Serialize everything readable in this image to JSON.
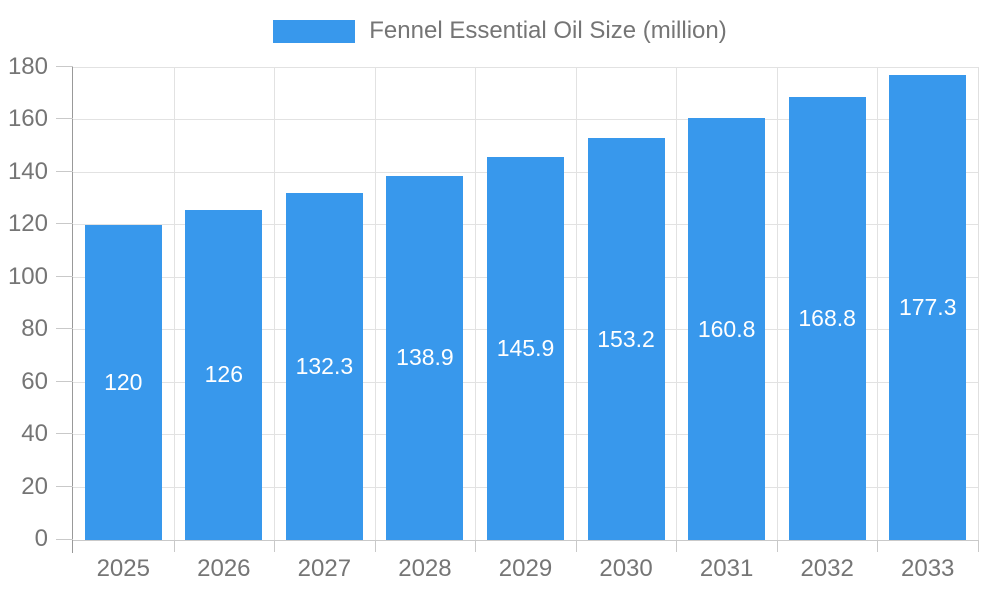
{
  "chart_data": {
    "type": "bar",
    "title": "Fennel Essential Oil Size (million)",
    "categories": [
      "2025",
      "2026",
      "2027",
      "2028",
      "2029",
      "2030",
      "2031",
      "2032",
      "2033"
    ],
    "values": [
      120,
      126,
      132.3,
      138.9,
      145.9,
      153.2,
      160.8,
      168.8,
      177.3
    ],
    "value_labels": [
      "120",
      "126",
      "132.3",
      "138.9",
      "145.9",
      "153.2",
      "160.8",
      "168.8",
      "177.3"
    ],
    "xlabel": "",
    "ylabel": "",
    "ylim": [
      0,
      180
    ],
    "yticks": [
      0,
      20,
      40,
      60,
      80,
      100,
      120,
      140,
      160,
      180
    ],
    "grid": "horizontal lines every 20 units, vertical lines at category boundaries",
    "legend_position": "top-center",
    "colors": {
      "bar": "#3898ec",
      "axis_line": "#999999",
      "grid_line": "#e2e2e2",
      "tick_line": "#c9c9c9",
      "axis_text": "#757575",
      "value_text": "#ffffff",
      "background": "#ffffff"
    }
  }
}
